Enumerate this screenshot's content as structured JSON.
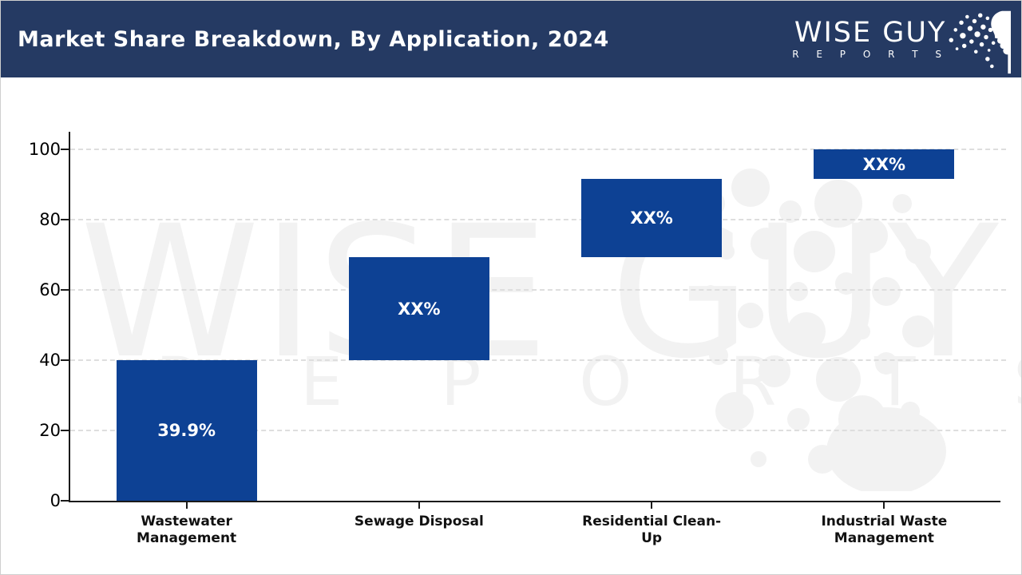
{
  "header": {
    "title": "Market Share Breakdown, By Application, 2024",
    "logo": {
      "line1": "WISE GUY",
      "line2": "R E P O R T S"
    }
  },
  "watermark": {
    "line1": "WISE GUY",
    "line2": "R E P O R T S"
  },
  "colors": {
    "header_bg": "#253a63",
    "bar": "#0d4194",
    "title_text": "#ffffff",
    "axis": "#1a1a1a",
    "gridline": "#dedede",
    "watermark": "#f2f2f2",
    "bar_label_text": "#ffffff",
    "tick_text": "#000000"
  },
  "chart_data": {
    "type": "bar",
    "subtype": "waterfall",
    "title": "Market Share Breakdown, By Application, 2024",
    "categories": [
      "Wastewater\nManagement",
      "Sewage Disposal",
      "Residential Clean-\nUp",
      "Industrial Waste\nManagement"
    ],
    "segments": [
      {
        "category": "Wastewater Management",
        "start": 0,
        "end": 39.9,
        "label": "39.9%"
      },
      {
        "category": "Sewage Disposal",
        "start": 39.9,
        "end": 69.3,
        "label": "XX%"
      },
      {
        "category": "Residential Clean-Up",
        "start": 69.3,
        "end": 91.5,
        "label": "XX%"
      },
      {
        "category": "Industrial Waste Management",
        "start": 91.5,
        "end": 100,
        "label": "XX%"
      }
    ],
    "ylim": [
      0,
      100
    ],
    "yticks": [
      0,
      20,
      40,
      60,
      80,
      100
    ],
    "xlabel": "",
    "ylabel": "",
    "grid": "horizontal-dashed",
    "legend": "none"
  }
}
